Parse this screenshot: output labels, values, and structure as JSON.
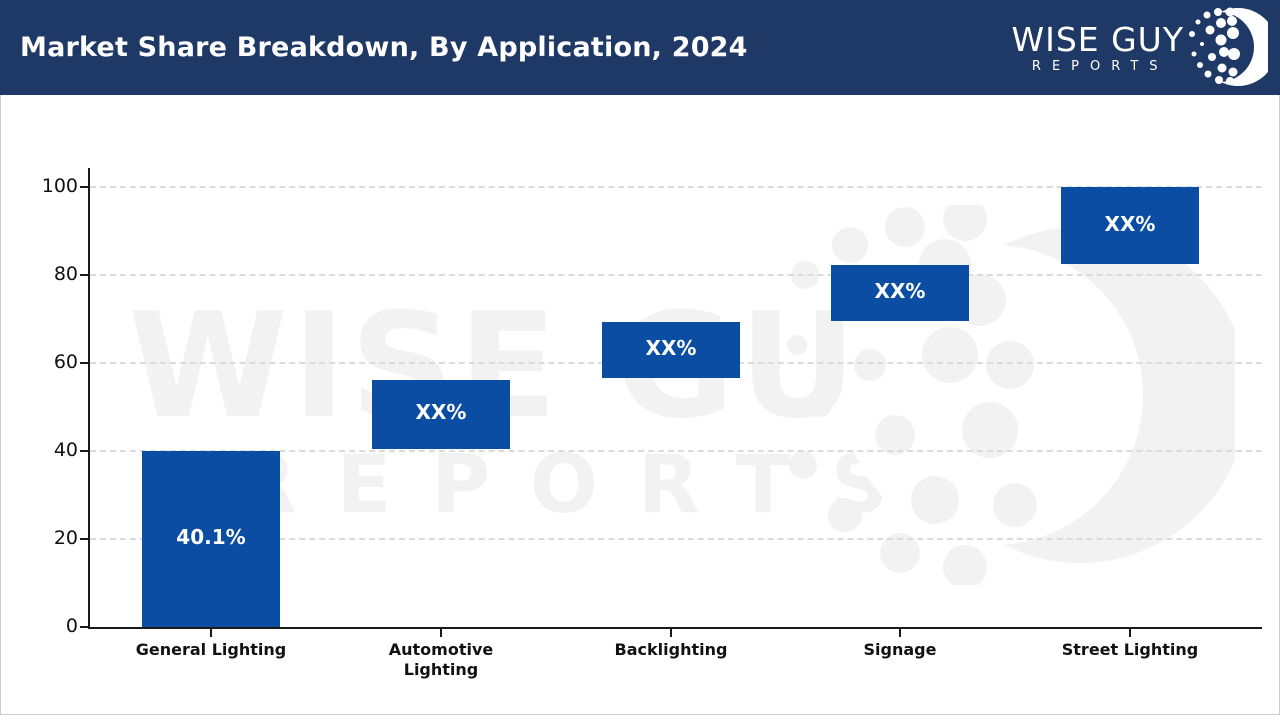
{
  "header": {
    "title": "Market Share Breakdown, By Application, 2024",
    "logo": {
      "wordmark": "WISE GUY",
      "wordmark_sub": "REPORTS",
      "head_icon": "dotted-face-profile-icon"
    }
  },
  "watermark": {
    "line1": "WISE GUY",
    "line2": "REPORTS"
  },
  "chart_data": {
    "type": "bar",
    "subtype": "waterfall",
    "title": "Market Share Breakdown, By Application, 2024",
    "categories": [
      "General Lighting",
      "Automotive Lighting",
      "Backlighting",
      "Signage",
      "Street Lighting"
    ],
    "category_lines": [
      [
        "General Lighting"
      ],
      [
        "Automotive",
        "Lighting"
      ],
      [
        "Backlighting"
      ],
      [
        "Signage"
      ],
      [
        "Street Lighting"
      ]
    ],
    "series": [
      {
        "name": "Market share by application (%)",
        "segments": [
          {
            "category": "General Lighting",
            "start": 0,
            "end": 40.1,
            "label": "40.1%"
          },
          {
            "category": "Automotive Lighting",
            "start": 40.5,
            "end": 56.2,
            "label": "XX%"
          },
          {
            "category": "Backlighting",
            "start": 56.5,
            "end": 69.3,
            "label": "XX%"
          },
          {
            "category": "Signage",
            "start": 69.5,
            "end": 82.2,
            "label": "XX%"
          },
          {
            "category": "Street Lighting",
            "start": 82.5,
            "end": 100,
            "label": "XX%"
          }
        ]
      }
    ],
    "xlabel": "",
    "ylabel": "",
    "ylim": [
      0,
      100
    ],
    "yticks": [
      0,
      20,
      40,
      60,
      80,
      100
    ],
    "grid": "horizontal-dashed",
    "legend": "none",
    "colors": {
      "bar": "#0b4da2",
      "bar_label": "#ffffff",
      "axis": "#1a1a1a",
      "gridline": "#dbdbdb",
      "header_bg": "#1f3966",
      "watermark": "#f2f2f2"
    }
  }
}
